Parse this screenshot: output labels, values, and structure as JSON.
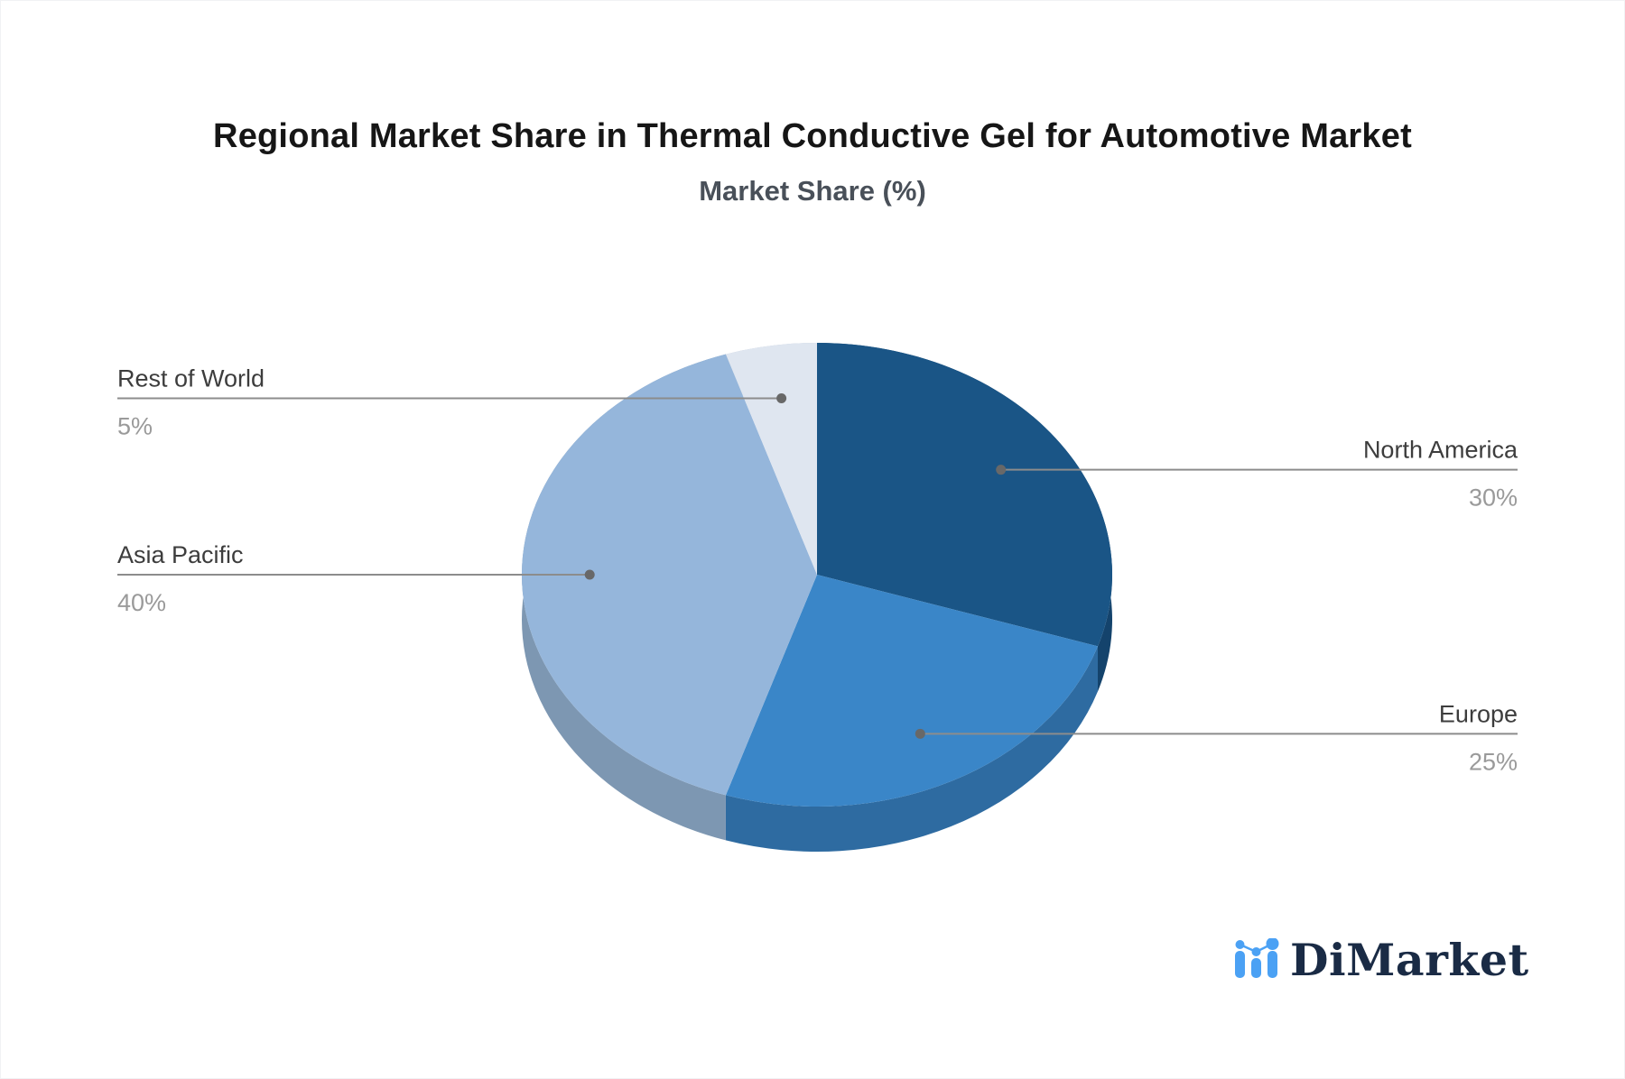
{
  "page": {
    "background": "#ffffff",
    "border_color": "#f1f2f4"
  },
  "header": {
    "title": "Regional Market Share in Thermal Conductive Gel for Automotive Market",
    "subtitle": "Market Share (%)",
    "title_color": "#161616",
    "subtitle_color": "#495059"
  },
  "chart_data": {
    "type": "pie",
    "title": "Regional Market Share in Thermal Conductive Gel for Automotive Market",
    "subtitle": "Market Share (%)",
    "unit": "%",
    "effect": "3d",
    "start_angle_deg": 0,
    "direction": "clockwise",
    "legend": "none",
    "slices": [
      {
        "label": "North America",
        "value": 30,
        "display_value": "30%",
        "color": "#1A5586",
        "side_color": "#14436C"
      },
      {
        "label": "Europe",
        "value": 25,
        "display_value": "25%",
        "color": "#3A86C8",
        "side_color": "#2E6BA1"
      },
      {
        "label": "Asia Pacific",
        "value": 40,
        "display_value": "40%",
        "color": "#95B6DB",
        "side_color": "#7D97B2"
      },
      {
        "label": "Rest of World",
        "value": 5,
        "display_value": "5%",
        "color": "#DFE6F0",
        "side_color": "#B5C0D1"
      }
    ],
    "label_style": {
      "name_color": "#3d3d3d",
      "value_color": "#9a9a9a",
      "line_color": "#8c8c8c",
      "dot_color": "#686868",
      "font_size": 27
    }
  },
  "logo": {
    "text": "DiMarket",
    "icon": "bar-chart-logo-icon",
    "icon_color": "#4BA1F4",
    "text_color": "#1A2B45"
  }
}
